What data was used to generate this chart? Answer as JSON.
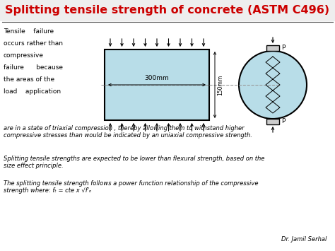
{
  "title": "Splitting tensile strength of concrete (ASTM C496)",
  "bg_color": "#ffffff",
  "title_color": "#cc0000",
  "title_fontsize": 11.5,
  "left_text_lines": [
    "Tensile    failure",
    "occurs rather than",
    "compressive",
    "failure      because",
    "the areas of the",
    "load    application"
  ],
  "para1": "are in a state of triaxial compression , thereby allowing them to withstand higher\ncompressive stresses than would be indicated by an uniaxial compressive strength.",
  "para2": "Splitting tensile strengths are expected to be lower than flexural strength, based on the\nsize effect principle.",
  "para3": "The splitting tensile strength follows a power function relationship of the compressive\nstrength where: fₜ = cte x √f'ₙ",
  "author": "Dr. Jamil Serhal",
  "rect_fill": "#b8dde8",
  "rect_stroke": "#000000",
  "dim_300": "300mm",
  "dim_150": "150mm",
  "title_bg": "#f0f0f0"
}
